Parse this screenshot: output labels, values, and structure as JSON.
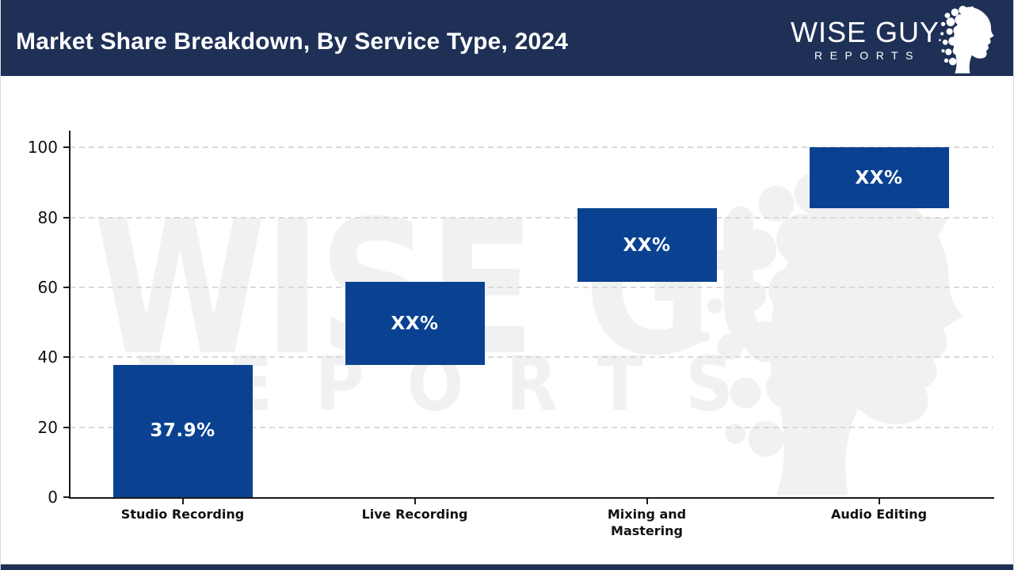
{
  "header": {
    "title": "Market Share Breakdown, By Service Type, 2024",
    "logo": {
      "line1": "WISE GUY",
      "line2": "REPORTS"
    }
  },
  "watermark": {
    "line1": "WISE GUY",
    "line2": "REPORTS"
  },
  "chart_data": {
    "type": "bar",
    "subtype": "floating-breakdown-waterfall",
    "title": "Market Share Breakdown, By Service Type, 2024",
    "categories": [
      "Studio Recording",
      "Live Recording",
      "Mixing and\nMastering",
      "Audio Editing"
    ],
    "segments": [
      {
        "category": "Studio Recording",
        "start": 0,
        "end": 37.9,
        "label": "37.9%"
      },
      {
        "category": "Live Recording",
        "start": 37.9,
        "end": 61.5,
        "label": "XX%"
      },
      {
        "category": "Mixing and Mastering",
        "start": 61.5,
        "end": 82.7,
        "label": "XX%"
      },
      {
        "category": "Audio Editing",
        "start": 82.7,
        "end": 100,
        "label": "XX%"
      }
    ],
    "yticks": [
      0,
      20,
      40,
      60,
      80,
      100
    ],
    "ylim": [
      0,
      105
    ],
    "xlabel": "",
    "ylabel": "",
    "grid": "horizontal-dashed",
    "legend": "none",
    "colors": {
      "bar": "#0a4291",
      "bar_label": "#ffffff",
      "axis": "#1a1a1a",
      "grid": "#d9d9d9",
      "tick_label": "#111111",
      "header_bg": "#1f3057",
      "watermark": "#f1f1f1"
    }
  }
}
